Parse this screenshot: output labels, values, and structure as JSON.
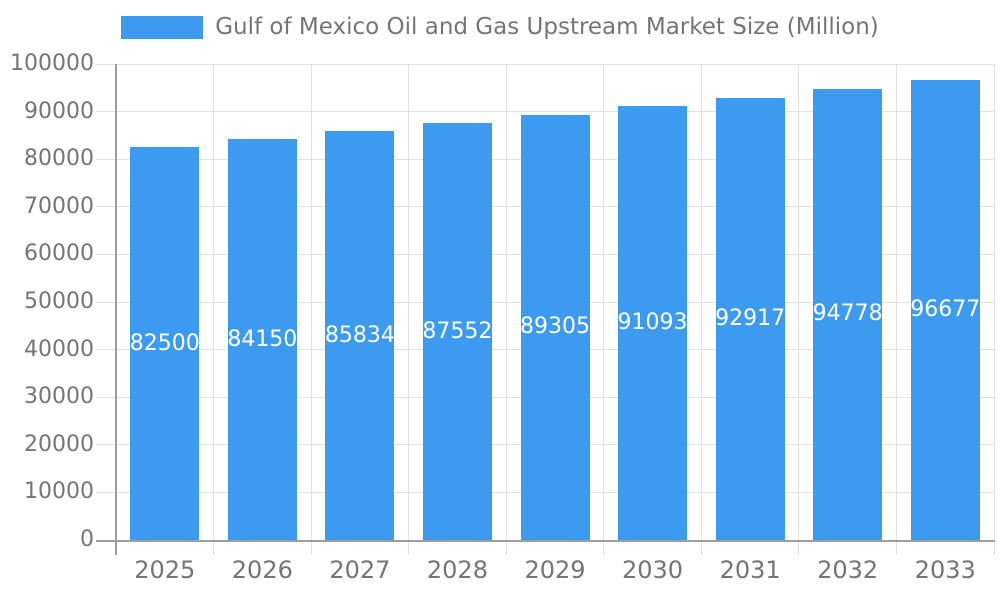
{
  "colors": {
    "bar": "#3C9BEE",
    "axis": "#9E9E9E",
    "grid": "#E0E0E0",
    "text": "#757575",
    "bar_label": "#FFFFFF",
    "background": "#FFFFFF"
  },
  "legend": {
    "position": "top",
    "label": "Gulf of Mexico Oil and Gas Upstream Market Size (Million)"
  },
  "chart_data": {
    "type": "bar",
    "title": "Gulf of Mexico Oil and Gas Upstream Market Size (Million)",
    "categories": [
      "2025",
      "2026",
      "2027",
      "2028",
      "2029",
      "2030",
      "2031",
      "2032",
      "2033"
    ],
    "values": [
      82500,
      84150,
      85834,
      87552,
      89305,
      91093,
      92917,
      94778,
      96677
    ],
    "bar_labels": [
      "82500",
      "84150",
      "85834",
      "87552",
      "89305",
      "91093",
      "92917",
      "94778",
      "96677"
    ],
    "xlabel": "",
    "ylabel": "",
    "ylim": [
      0,
      100000
    ],
    "yticks": [
      0,
      10000,
      20000,
      30000,
      40000,
      50000,
      60000,
      70000,
      80000,
      90000,
      100000
    ],
    "grid": true,
    "legend_position": "top",
    "bar_label_position": "center"
  }
}
